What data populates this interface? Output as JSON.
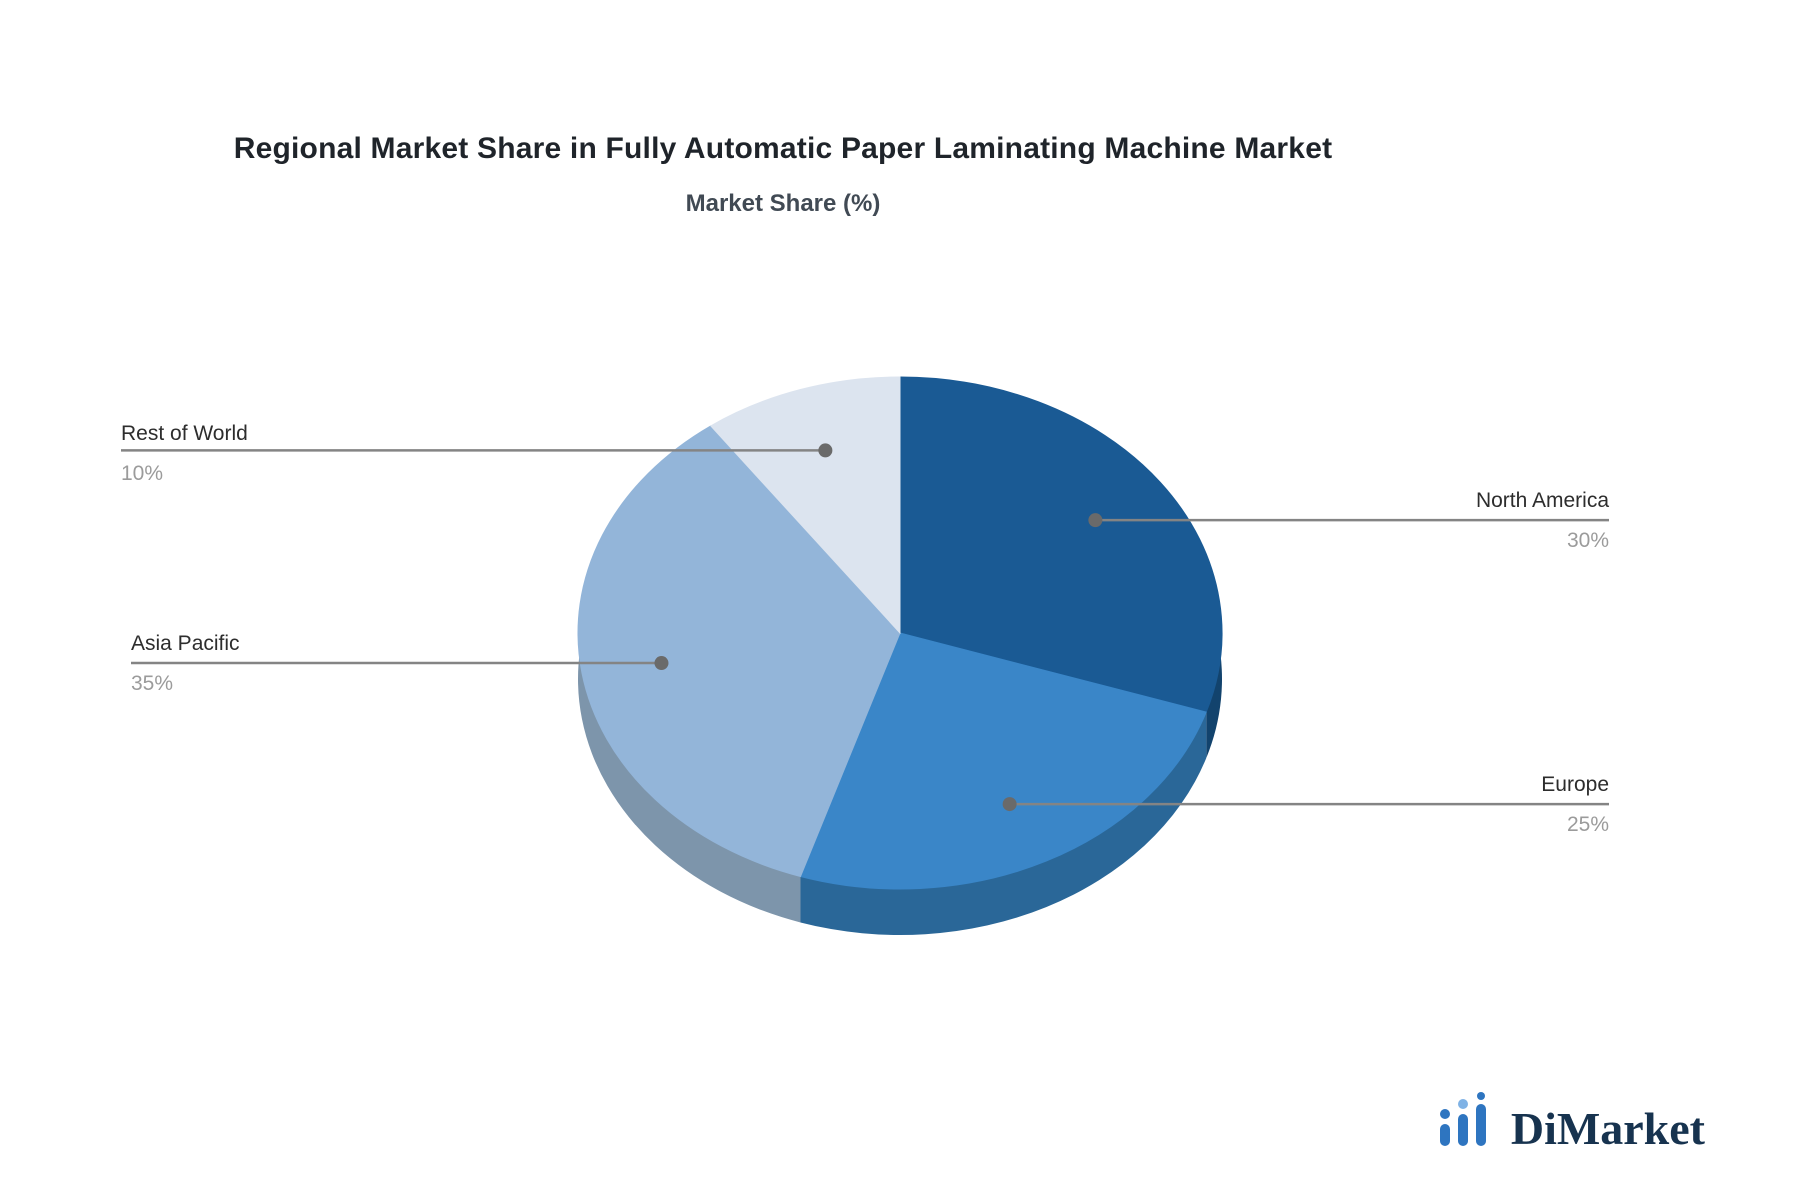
{
  "page": {
    "background": "#ffffff"
  },
  "header": {
    "title": "Regional Market Share in Fully Automatic Paper Laminating Machine Market",
    "subtitle": "Market Share (%)"
  },
  "brand": {
    "name": "DiMarket",
    "icon": "bar-chart-logo-icon",
    "text_color": "#17334f",
    "icon_color": "#2e75c0"
  },
  "chart_data": {
    "type": "pie",
    "style": "3d-extruded",
    "title": "Regional Market Share in Fully Automatic Paper Laminating Machine Market",
    "subtitle": "Market Share (%)",
    "unit": "%",
    "start_angle": "12-oclock",
    "direction": "clockwise",
    "legend_position": "none",
    "label_style": "leader-lines",
    "slices": [
      {
        "label": "North America",
        "value": 30,
        "pct_label": "30%",
        "color": "#1a5a94",
        "side_color": "#12436d",
        "label_side": "right"
      },
      {
        "label": "Europe",
        "value": 25,
        "pct_label": "25%",
        "color": "#3a86c8",
        "side_color": "#2a6798",
        "label_side": "right"
      },
      {
        "label": "Asia Pacific",
        "value": 35,
        "pct_label": "35%",
        "color": "#93b5d9",
        "side_color": "#7d95ab",
        "label_side": "left"
      },
      {
        "label": "Rest of World",
        "value": 10,
        "pct_label": "10%",
        "color": "#dce4ef",
        "side_color": "#aebacb",
        "label_side": "left"
      }
    ],
    "leader_line_color": "#848484",
    "leader_dot_color": "#6a6a6a",
    "label_text_color": "#2d2d2d",
    "pct_text_color": "#9b9b9b"
  }
}
